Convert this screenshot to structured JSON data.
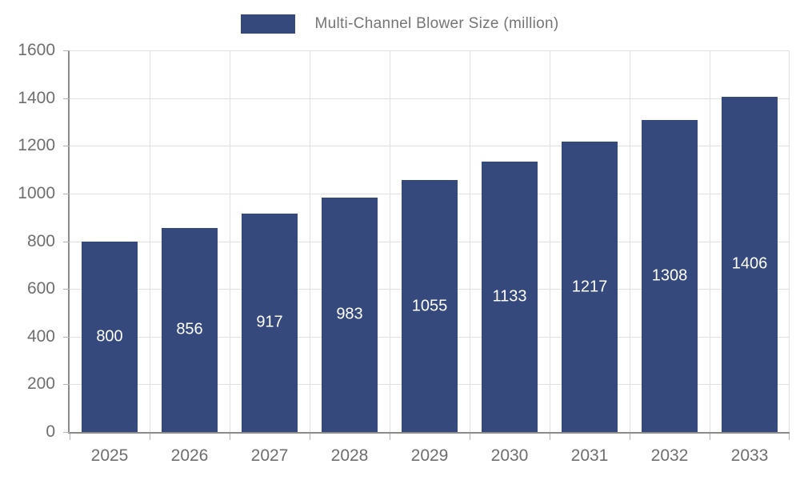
{
  "chart_data": {
    "type": "bar",
    "title": "Multi-Channel Blower Size (million)",
    "categories": [
      "2025",
      "2026",
      "2027",
      "2028",
      "2029",
      "2030",
      "2031",
      "2032",
      "2033"
    ],
    "values": [
      800,
      856,
      917,
      983,
      1055,
      1133,
      1217,
      1308,
      1406
    ],
    "xlabel": "",
    "ylabel": "",
    "ylim": [
      0,
      1600
    ],
    "ytick_step": 200,
    "yticks": [
      0,
      200,
      400,
      600,
      800,
      1000,
      1200,
      1400,
      1600
    ],
    "grid": true,
    "legend_position": "top-center",
    "value_labels": "inside-center-white",
    "colors": {
      "bar": "#35497d",
      "bar_value_label": "#ffffff",
      "gridline": "#e0e0e0",
      "axis_line": "#8a8a8a",
      "tick_mark": "#b3b3b3",
      "tick_label": "#6e6e6e",
      "legend_text": "#757575",
      "background": "#ffffff"
    }
  }
}
